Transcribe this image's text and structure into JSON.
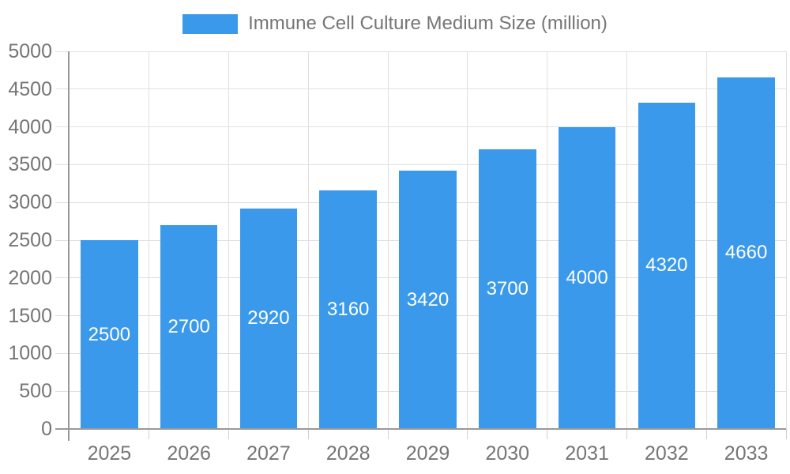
{
  "legend": {
    "label": "Immune Cell Culture Medium Size (million)"
  },
  "colors": {
    "bar": "#3B99EC",
    "bar_label": "#FFFFFF",
    "axis_text": "#757575",
    "grid": "#E0E0E0",
    "tick": "#D0D0D0",
    "axis_line": "#999999",
    "background": "#FFFFFF"
  },
  "chart_data": {
    "type": "bar",
    "title": "Immune Cell Culture Medium Size (million)",
    "categories": [
      "2025",
      "2026",
      "2027",
      "2028",
      "2029",
      "2030",
      "2031",
      "2032",
      "2033"
    ],
    "values": [
      2500,
      2700,
      2920,
      3160,
      3420,
      3700,
      4000,
      4320,
      4660
    ],
    "bar_value_labels": [
      "2500",
      "2700",
      "2920",
      "3160",
      "3420",
      "3700",
      "4000",
      "4320",
      "4660"
    ],
    "xlabel": "",
    "ylabel": "",
    "ylim": [
      0,
      5000
    ],
    "ytick_step": 500,
    "ytick_labels": [
      "0",
      "500",
      "1000",
      "1500",
      "2000",
      "2500",
      "3000",
      "3500",
      "4000",
      "4500",
      "5000"
    ],
    "grid": true,
    "legend_position": "top-center"
  }
}
